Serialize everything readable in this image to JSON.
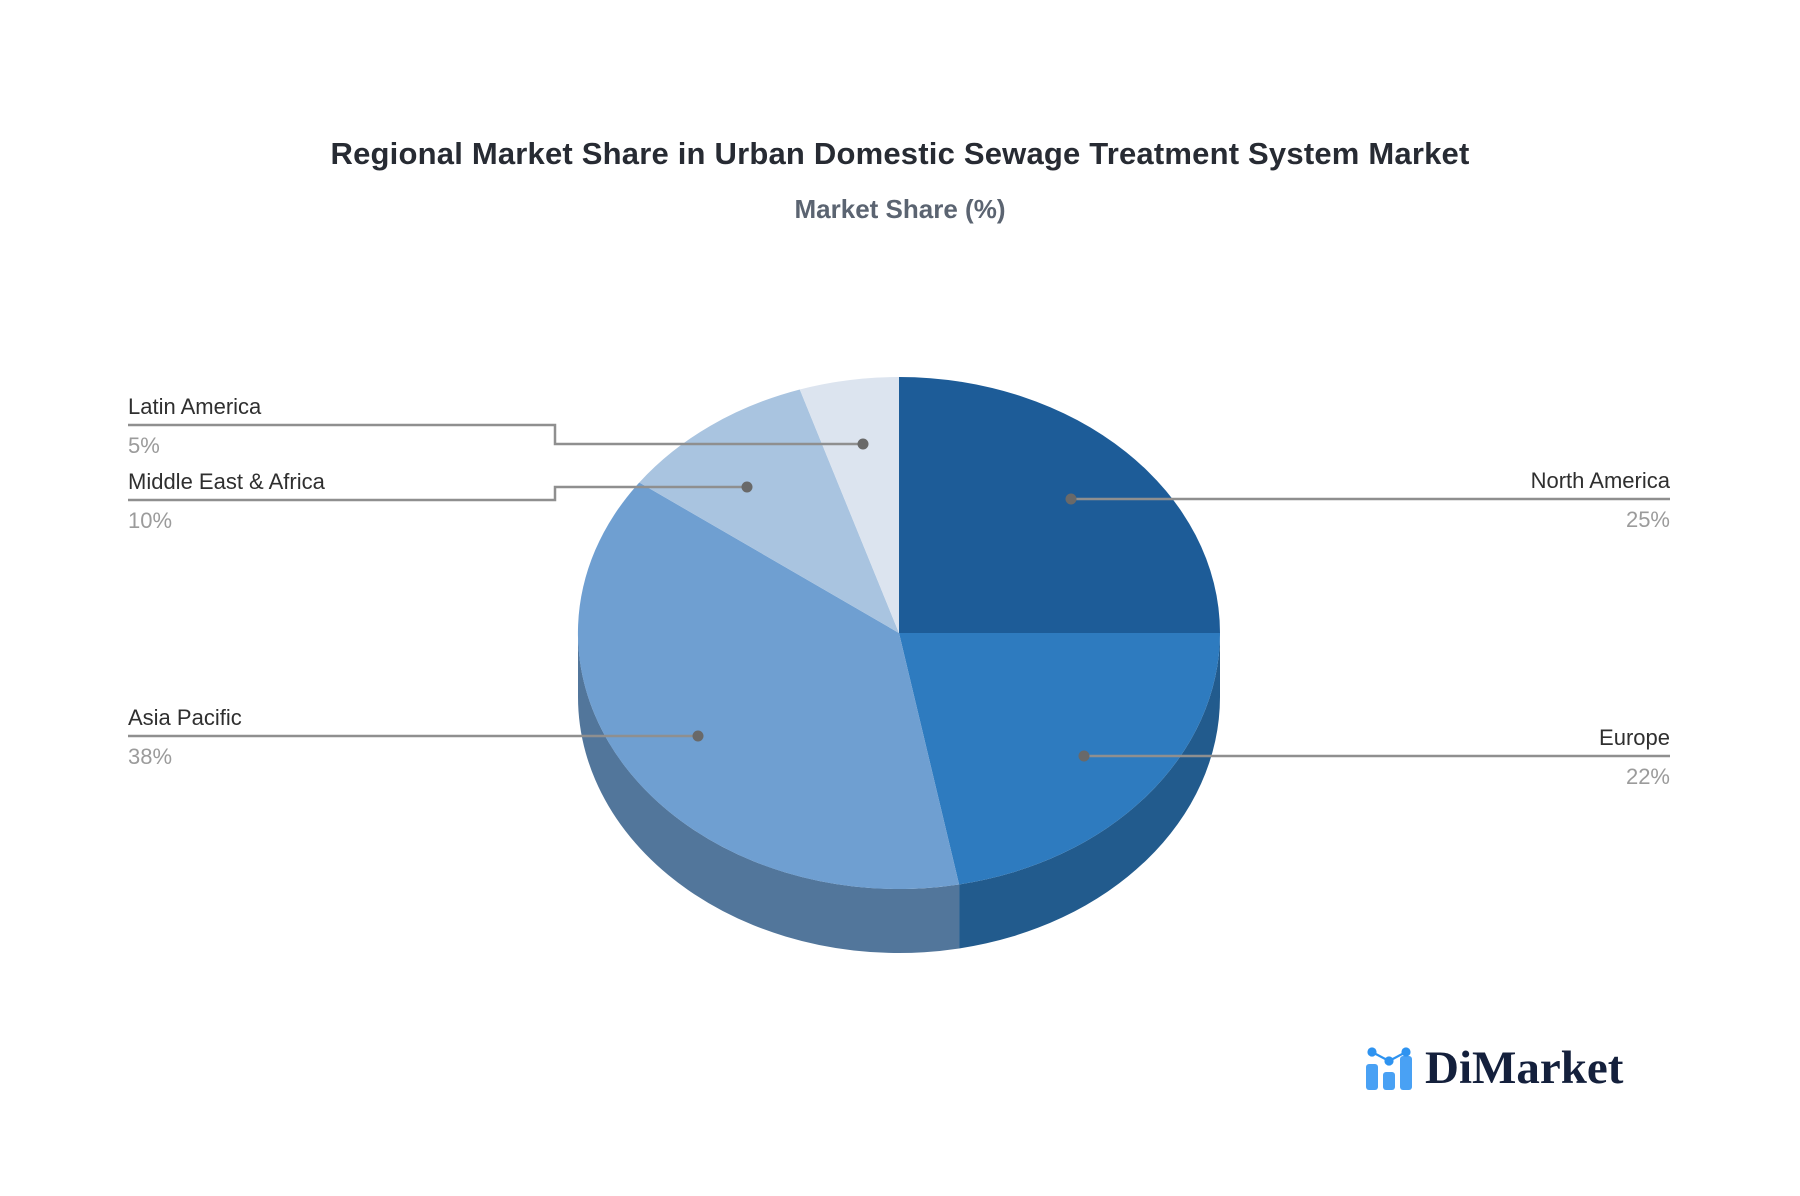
{
  "title": "Regional Market Share in Urban Domestic Sewage Treatment System Market",
  "subtitle": "Market Share (%)",
  "chart_data": {
    "type": "pie",
    "title": "Regional Market Share in Urban Domestic Sewage Treatment System Market",
    "subtitle": "Market Share (%)",
    "unit": "%",
    "style": "3d-depth-pie",
    "start_angle_deg": 0,
    "direction": "clockwise",
    "legend_position": "callout-labels",
    "slices": [
      {
        "label": "North America",
        "value": 25,
        "display": "25%",
        "color": "#1d5c98"
      },
      {
        "label": "Europe",
        "value": 22,
        "display": "22%",
        "color": "#2e7bbf"
      },
      {
        "label": "Asia Pacific",
        "value": 38,
        "display": "38%",
        "color": "#6f9fd1"
      },
      {
        "label": "Middle East & Africa",
        "value": 10,
        "display": "10%",
        "color": "#a9c4e0"
      },
      {
        "label": "Latin America",
        "value": 5,
        "display": "5%",
        "color": "#dce4ef"
      }
    ],
    "colors": {
      "label_text": "#2f2f2f",
      "percent_text": "#9b9b9b",
      "leader_line": "#8f8f8f",
      "leader_dot": "#696969",
      "title_text": "#272b33",
      "subtitle_text": "#5b6471"
    }
  },
  "logo": {
    "brand": "DiMarket",
    "icon": "bar-line-chart-icon",
    "accent_color": "#3f9cf3",
    "text_color": "#14203c"
  }
}
